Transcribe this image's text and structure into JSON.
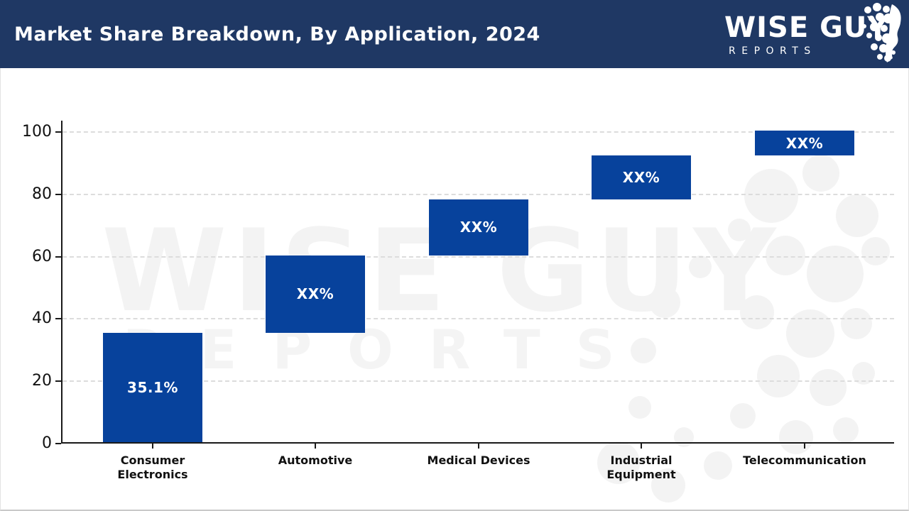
{
  "header": {
    "title": "Market Share Breakdown, By Application, 2024",
    "logo": {
      "line1": "WISE GUY",
      "line2": "R E P O R T S"
    }
  },
  "watermark": {
    "line1": "WISE GUY",
    "line2": "REPORTS"
  },
  "chart_data": {
    "type": "bar",
    "subtype": "waterfall",
    "title": "Market Share Breakdown, By Application, 2024",
    "categories": [
      "Consumer Electronics",
      "Automotive",
      "Medical Devices",
      "Industrial Equipment",
      "Telecommunication"
    ],
    "category_lines": [
      [
        "Consumer",
        "Electronics"
      ],
      [
        "Automotive"
      ],
      [
        "Medical Devices"
      ],
      [
        "Industrial",
        "Equipment"
      ],
      [
        "Telecommunication"
      ]
    ],
    "segments": [
      {
        "category": "Consumer Electronics",
        "start": 0,
        "end": 35.1,
        "label": "35.1%"
      },
      {
        "category": "Automotive",
        "start": 35.1,
        "end": 60,
        "label": "XX%"
      },
      {
        "category": "Medical Devices",
        "start": 60,
        "end": 78,
        "label": "XX%"
      },
      {
        "category": "Industrial Equipment",
        "start": 78,
        "end": 92,
        "label": "XX%"
      },
      {
        "category": "Telecommunication",
        "start": 92,
        "end": 100,
        "label": "XX%"
      }
    ],
    "ylim": [
      0,
      100
    ],
    "yticks": [
      0,
      20,
      40,
      60,
      80,
      100
    ],
    "xlabel": "",
    "ylabel": "",
    "grid": "horizontal dashed",
    "legend": "none",
    "bar_color": "#07429c",
    "bar_label_color": "#ffffff"
  },
  "colors": {
    "header_bg": "#1f3864",
    "header_text": "#ffffff",
    "bar_blue": "#07429c",
    "axis": "#1a1a1a",
    "grid": "#dcdcdc",
    "watermark": "#f3f3f3",
    "bottom_hairline": "#c9c9c9"
  }
}
